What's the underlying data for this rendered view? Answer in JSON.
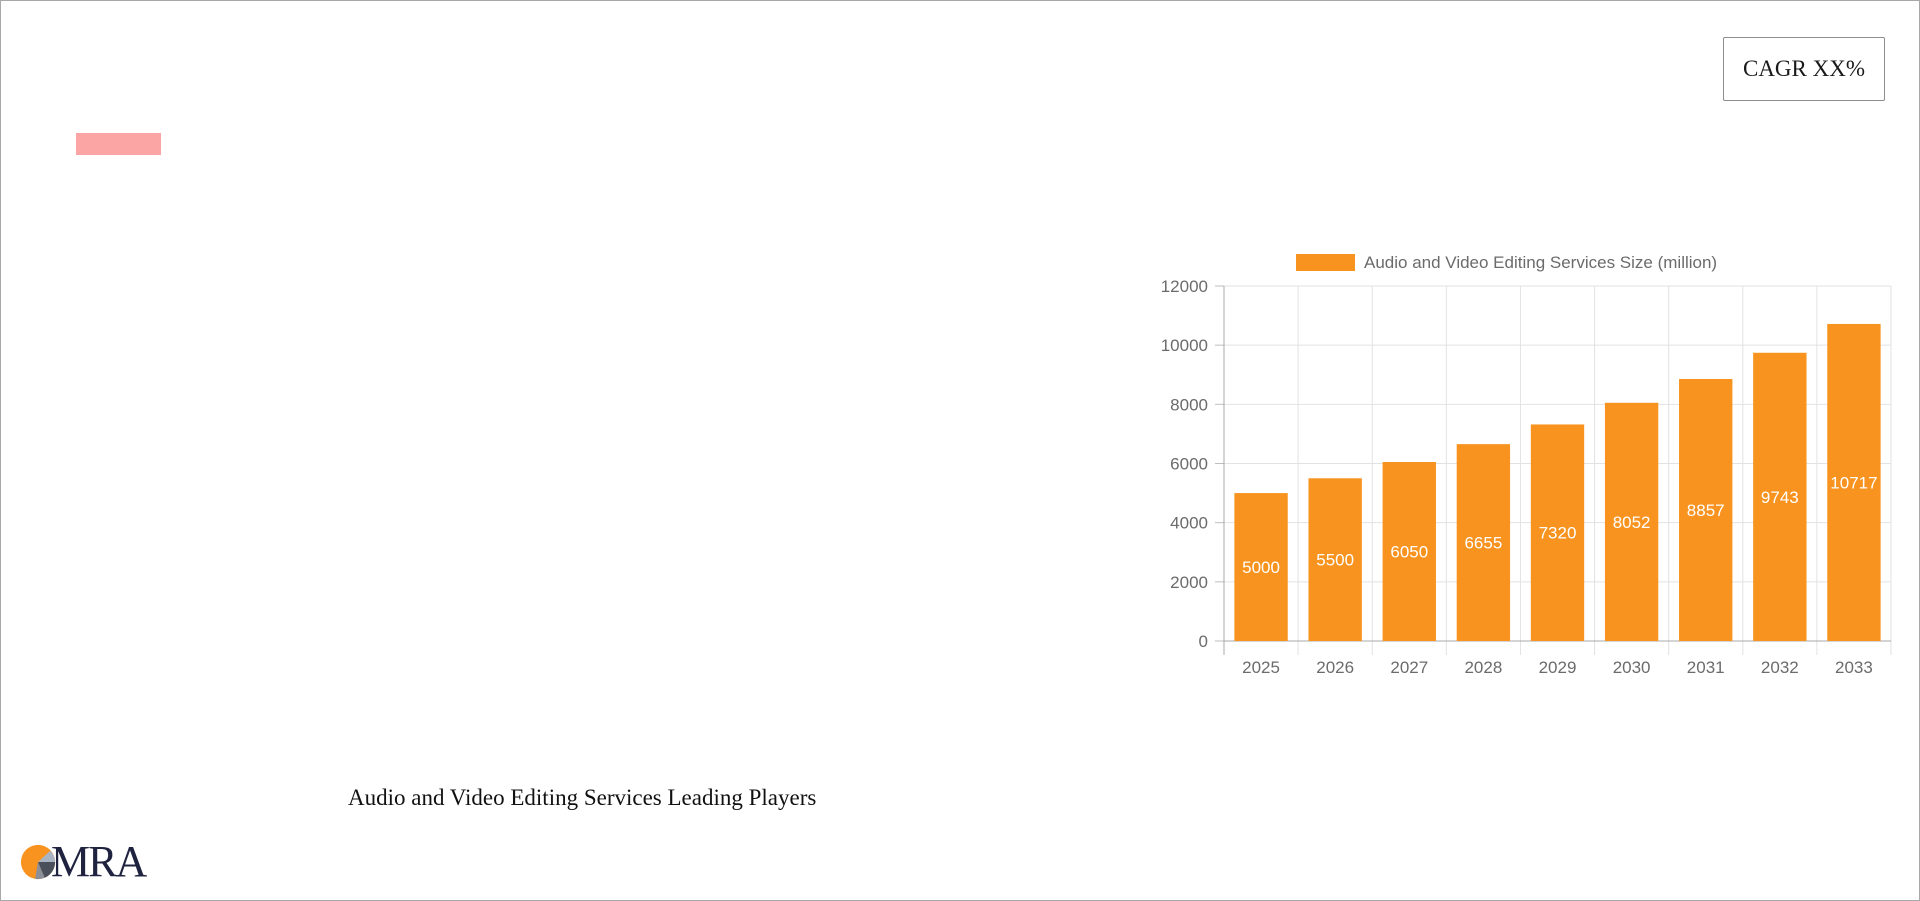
{
  "cagr_label": "CAGR XX%",
  "players_title": "Audio and Video Editing Services Leading Players",
  "logo": {
    "text": "MRA"
  },
  "colors": {
    "bar": "#F7931E",
    "accent_pink": "#FCA5A5",
    "logo_text": "#1F2340"
  },
  "chart_data": {
    "type": "bar",
    "categories": [
      "2025",
      "2026",
      "2027",
      "2028",
      "2029",
      "2030",
      "2031",
      "2032",
      "2033"
    ],
    "series": [
      {
        "name": "Audio and Video Editing Services Size (million)",
        "values": [
          5000,
          5500,
          6050,
          6655,
          7320,
          8052,
          8857,
          9743,
          10717
        ]
      }
    ],
    "ylim": [
      0,
      12000
    ],
    "yticks": [
      0,
      2000,
      4000,
      6000,
      8000,
      10000,
      12000
    ],
    "grid": true,
    "legend": "top",
    "data_labels": true
  }
}
